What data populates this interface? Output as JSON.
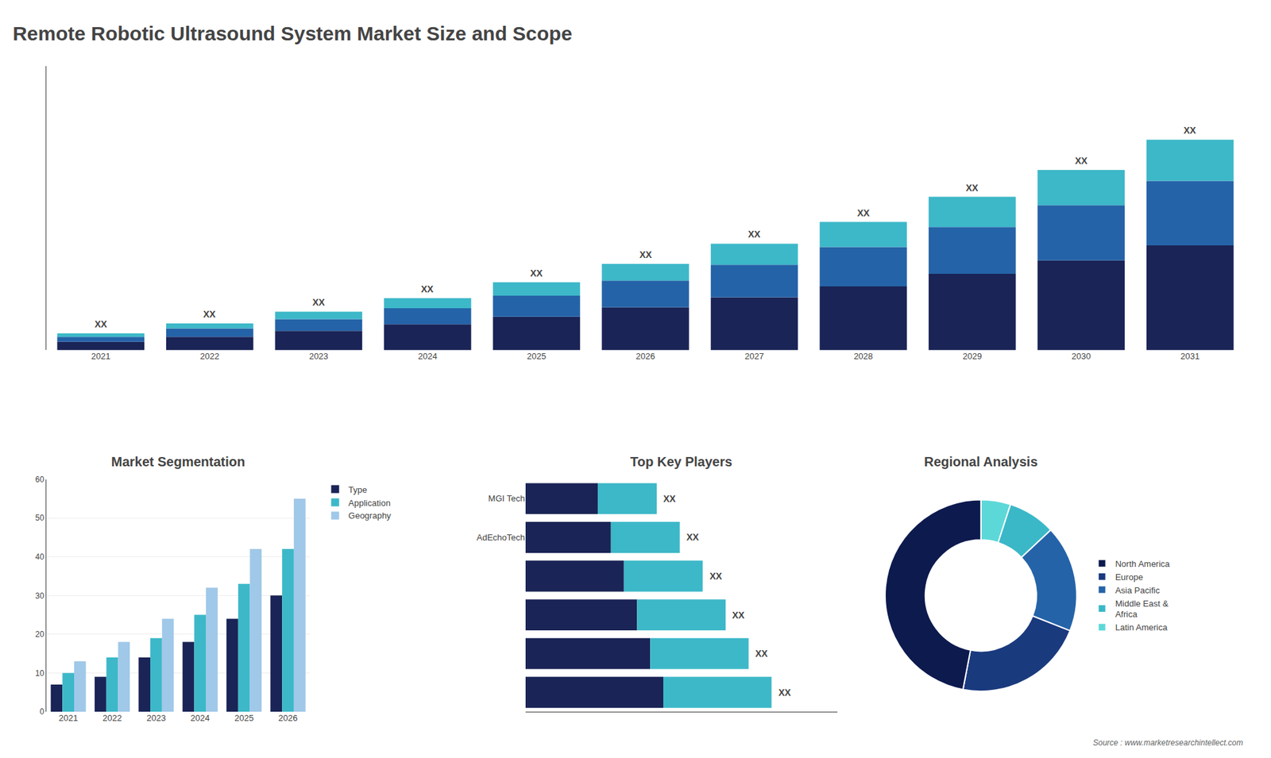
{
  "chart_data": [
    {
      "type": "bar",
      "title": "Remote Robotic Ultrasound System Market Size and Scope",
      "stacked": true,
      "categories": [
        "2021",
        "2022",
        "2023",
        "2024",
        "2025",
        "2026",
        "2027",
        "2028",
        "2029",
        "2030",
        "2031"
      ],
      "series": [
        {
          "color": "#1a2456",
          "values": [
            1.0,
            1.6,
            2.3,
            3.1,
            4.0,
            5.1,
            6.3,
            7.6,
            9.1,
            10.7,
            12.5
          ]
        },
        {
          "color": "#2563a8",
          "values": [
            0.6,
            1.0,
            1.4,
            1.9,
            2.5,
            3.2,
            3.9,
            4.7,
            5.6,
            6.6,
            7.7
          ]
        },
        {
          "color": "#3db8c8",
          "values": [
            0.4,
            0.6,
            0.9,
            1.2,
            1.6,
            2.0,
            2.5,
            3.0,
            3.6,
            4.2,
            4.9
          ]
        }
      ],
      "ylim": [
        0,
        33.885
      ],
      "yticks": [],
      "tick_labels": "x",
      "grid": false,
      "annotations": [
        {
          "x": "2021",
          "text": "XX"
        },
        {
          "x": "2022",
          "text": "XX"
        },
        {
          "x": "2023",
          "text": "XX"
        },
        {
          "x": "2024",
          "text": "XX"
        },
        {
          "x": "2025",
          "text": "XX"
        },
        {
          "x": "2026",
          "text": "XX"
        },
        {
          "x": "2027",
          "text": "XX"
        },
        {
          "x": "2028",
          "text": "XX"
        },
        {
          "x": "2029",
          "text": "XX"
        },
        {
          "x": "2030",
          "text": "XX"
        },
        {
          "x": "2031",
          "text": "XX"
        },
        {
          "text": "Source : www.marketresearchintellect.com"
        }
      ]
    },
    {
      "type": "bar",
      "title": "Market Segmentation",
      "categories": [
        "2021",
        "2022",
        "2023",
        "2024",
        "2025",
        "2026"
      ],
      "series": [
        {
          "name": "Type",
          "color": "#1a2456",
          "values": [
            7,
            9,
            14,
            18,
            24,
            30
          ]
        },
        {
          "name": "Application",
          "color": "#3db8c8",
          "values": [
            10,
            14,
            19,
            25,
            33,
            42
          ]
        },
        {
          "name": "Geography",
          "color": "#a0c8e8",
          "values": [
            13,
            18,
            24,
            32,
            42,
            55
          ]
        }
      ],
      "ylim": [
        0,
        60
      ],
      "yticks": [
        0,
        10,
        20,
        30,
        40,
        50,
        60
      ],
      "grid": true,
      "legend": "right"
    },
    {
      "type": "bar",
      "title": "Top Key Players",
      "orientation": "horizontal",
      "stacked": true,
      "categories": [
        null,
        null,
        null,
        null,
        "AdEchoTech",
        "MGI Tech"
      ],
      "series": [
        {
          "color": "#1a2456",
          "values": [
            42,
            38,
            34,
            30,
            26,
            22
          ]
        },
        {
          "color": "#3db8c8",
          "values": [
            33,
            30,
            27,
            24,
            21,
            18
          ]
        }
      ],
      "xlim": [
        0,
        95
      ],
      "xticks": [],
      "tick_labels": "y",
      "grid": false,
      "annotations": [
        {
          "y": 0,
          "text": "XX"
        },
        {
          "y": 1,
          "text": "XX"
        },
        {
          "y": 2,
          "text": "XX"
        },
        {
          "y": 3,
          "text": "XX"
        },
        {
          "y": 4,
          "text": "XX"
        },
        {
          "y": 5,
          "text": "XX"
        }
      ]
    },
    {
      "type": "pie",
      "title": "Regional Analysis",
      "categories": [
        "Latin America",
        "Middle East &\nAfrica",
        "Asia Pacific",
        "Europe",
        "North America"
      ],
      "values": [
        5,
        8,
        18,
        22,
        47
      ],
      "colors": [
        "#5dd8d8",
        "#3ab8c8",
        "#2563a8",
        "#1a3a7e",
        "#0d1a4e"
      ],
      "legend": "right"
    }
  ]
}
